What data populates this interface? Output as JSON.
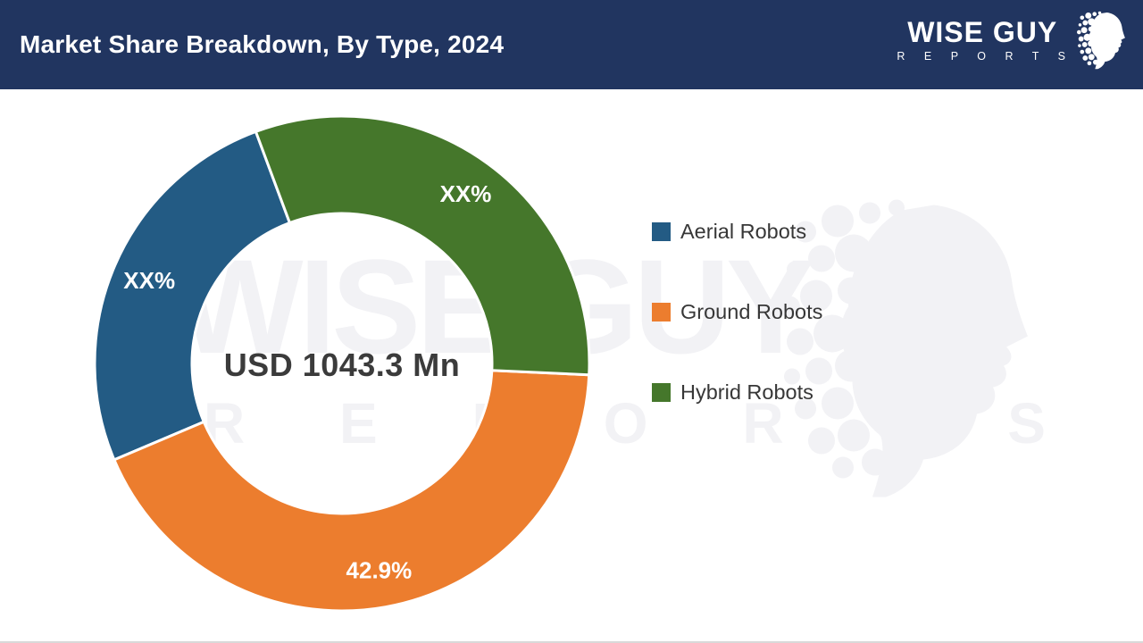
{
  "header": {
    "title": "Market Share Breakdown, By Type, 2024",
    "logo": {
      "name": "WISE GUY",
      "sub": "R E P O R T S"
    }
  },
  "watermark": {
    "line1": "WISE GUY",
    "line2": "R E P O R T S"
  },
  "chart_data": {
    "type": "pie",
    "donut": true,
    "title": "Market Share Breakdown, By Type, 2024",
    "center_label": "USD 1043.3 Mn",
    "start_angle_deg": 110.4,
    "counterclockwise": true,
    "legend_position": "right",
    "series": [
      {
        "name": "Aerial Robots",
        "value_pct": 25.7,
        "slice_label": "XX%",
        "color": "#235B84"
      },
      {
        "name": "Ground Robots",
        "value_pct": 42.9,
        "slice_label": "42.9%",
        "color": "#EC7D2E"
      },
      {
        "name": "Hybrid Robots",
        "value_pct": 31.4,
        "slice_label": "XX%",
        "color": "#45772B"
      }
    ]
  },
  "colors": {
    "header_bg": "#213560",
    "watermark": "#F2F2F5",
    "text_dark": "#3B3B3B"
  }
}
